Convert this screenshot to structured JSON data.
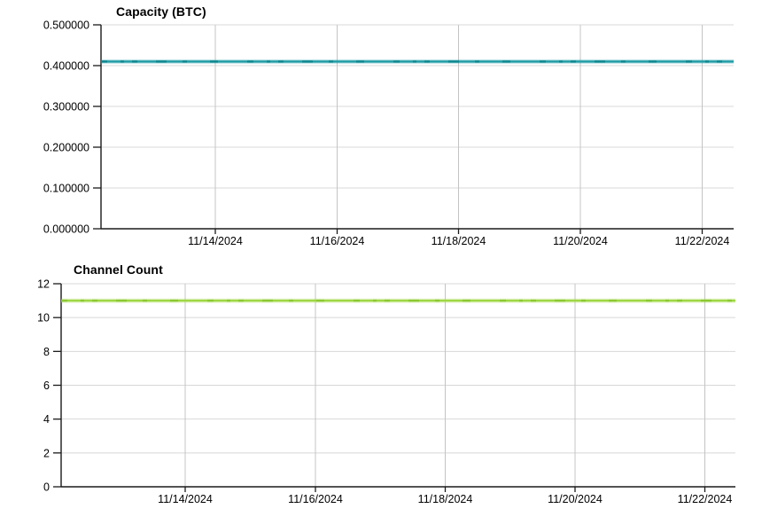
{
  "page": {
    "background_color": "#ffffff",
    "text_color": "#000000",
    "axis_color": "#1a1a1a",
    "hgrid_color": "#d8d8d8",
    "vgrid_color": "#c4c4c4"
  },
  "chart_data": [
    {
      "type": "line",
      "title": "Capacity (BTC)",
      "xlabel": "",
      "ylabel": "",
      "ylim": [
        0,
        0.5
      ],
      "grid": true,
      "legend_position": "none",
      "y_tick_values": [
        0.5,
        0.4,
        0.3,
        0.2,
        0.1,
        0.0
      ],
      "y_tick_labels": [
        "0.500000",
        "0.400000",
        "0.300000",
        "0.200000",
        "0.100000",
        "0.000000"
      ],
      "x_tick_labels": [
        "11/14/2024",
        "11/16/2024",
        "11/18/2024",
        "11/20/2024",
        "11/22/2024"
      ],
      "x": [
        "11/12/2024",
        "11/13/2024",
        "11/14/2024",
        "11/15/2024",
        "11/16/2024",
        "11/17/2024",
        "11/18/2024",
        "11/19/2024",
        "11/20/2024",
        "11/21/2024",
        "11/22/2024"
      ],
      "series": [
        {
          "name": "Capacity (BTC)",
          "color": "#1D9CA4",
          "color_dark": "#0B868F",
          "values": [
            0.41,
            0.41,
            0.41,
            0.41,
            0.41,
            0.41,
            0.41,
            0.41,
            0.41,
            0.41,
            0.41
          ]
        }
      ]
    },
    {
      "type": "line",
      "title": "Channel Count",
      "xlabel": "",
      "ylabel": "",
      "ylim": [
        0,
        12
      ],
      "grid": true,
      "legend_position": "none",
      "y_tick_values": [
        12,
        10,
        8,
        6,
        4,
        2,
        0
      ],
      "y_tick_labels": [
        "12",
        "10",
        "8",
        "6",
        "4",
        "2",
        "0"
      ],
      "x_tick_labels": [
        "11/14/2024",
        "11/16/2024",
        "11/18/2024",
        "11/20/2024",
        "11/22/2024"
      ],
      "x": [
        "11/12/2024",
        "11/13/2024",
        "11/14/2024",
        "11/15/2024",
        "11/16/2024",
        "11/17/2024",
        "11/18/2024",
        "11/19/2024",
        "11/20/2024",
        "11/21/2024",
        "11/22/2024"
      ],
      "series": [
        {
          "name": "Channel Count",
          "color": "#9FD743",
          "color_dark": "#8BC832",
          "values": [
            11,
            11,
            11,
            11,
            11,
            11,
            11,
            11,
            11,
            11,
            11
          ]
        }
      ]
    }
  ]
}
